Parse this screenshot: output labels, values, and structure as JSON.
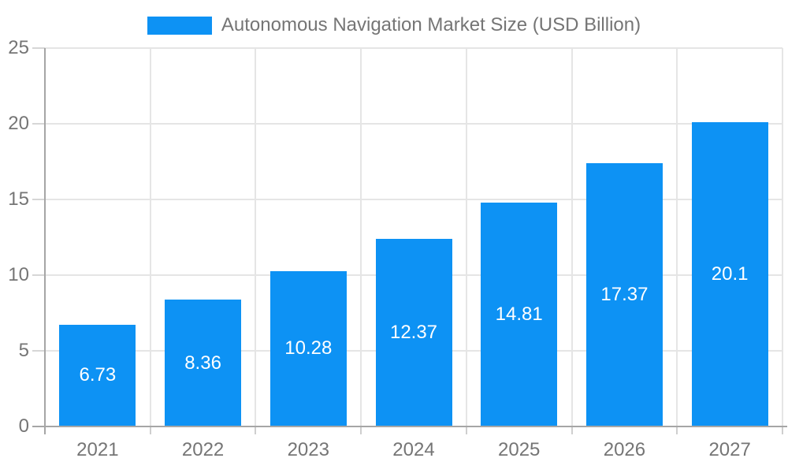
{
  "chart_data": {
    "type": "bar",
    "title": "Autonomous Navigation Market Size (USD Billion)",
    "categories": [
      "2021",
      "2022",
      "2023",
      "2024",
      "2025",
      "2026",
      "2027"
    ],
    "values": [
      6.73,
      8.36,
      10.28,
      12.37,
      14.81,
      17.37,
      20.1
    ],
    "value_labels": [
      "6.73",
      "8.36",
      "10.28",
      "12.37",
      "14.81",
      "17.37",
      "20.1"
    ],
    "xlabel": "",
    "ylabel": "",
    "ylim": [
      0,
      25
    ],
    "yticks": [
      0,
      5,
      10,
      15,
      20,
      25
    ],
    "grid": true,
    "legend_position": "top-center",
    "bar_color": "#0D92F4",
    "value_label_color": "#FFFFFF",
    "axis_text_color": "#757575",
    "axis_line_color": "#A6A6A6",
    "grid_color": "#E5E5E5"
  }
}
